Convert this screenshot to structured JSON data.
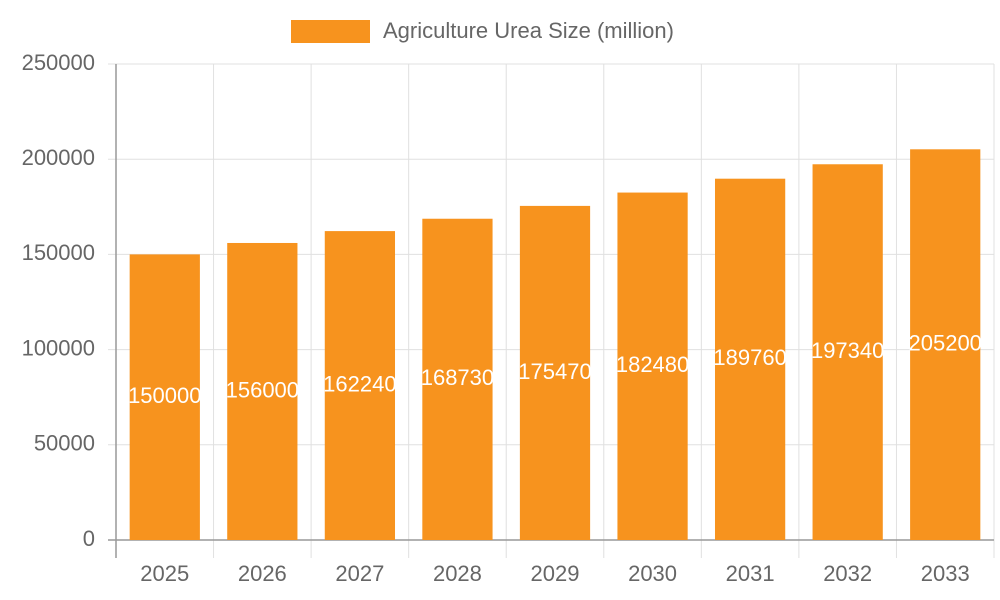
{
  "chart_data": {
    "type": "bar",
    "categories": [
      "2025",
      "2026",
      "2027",
      "2028",
      "2029",
      "2030",
      "2031",
      "2032",
      "2033"
    ],
    "series": [
      {
        "name": "Agriculture Urea Size (million)",
        "color": "#f7931e",
        "values": [
          150000,
          156000,
          162240,
          168730,
          175470,
          182480,
          189760,
          197340,
          205200
        ]
      }
    ],
    "ylim": [
      0,
      250000
    ],
    "yticks": [
      0,
      50000,
      100000,
      150000,
      200000,
      250000
    ],
    "grid": true
  }
}
